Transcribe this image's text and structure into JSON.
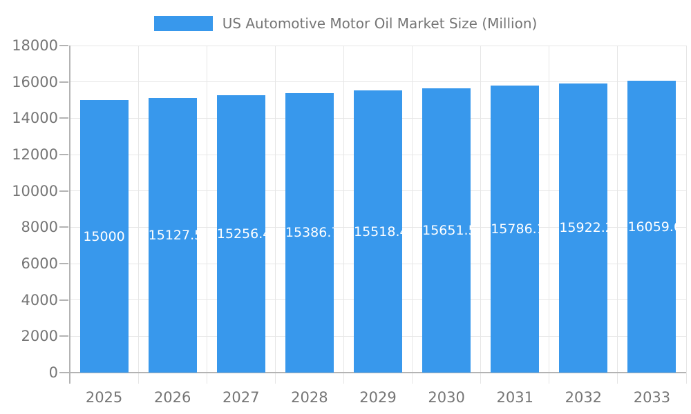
{
  "chart_data": {
    "type": "bar",
    "title": "US Automotive Motor Oil Market Size (Million)",
    "categories": [
      "2025",
      "2026",
      "2027",
      "2028",
      "2029",
      "2030",
      "2031",
      "2032",
      "2033"
    ],
    "values": [
      15000,
      15127.5,
      15256.4,
      15386.7,
      15518.4,
      15651.5,
      15786.1,
      15922.2,
      16059.6
    ],
    "value_labels": [
      "15000",
      "15127.5",
      "15256.4",
      "15386.7",
      "15518.4",
      "15651.5",
      "15786.1",
      "15922.2",
      "16059.6"
    ],
    "xlabel": "",
    "ylabel": "",
    "ylim": [
      0,
      18000
    ],
    "ytick_step": 2000,
    "ytick_labels": [
      "0",
      "2000",
      "4000",
      "6000",
      "8000",
      "10000",
      "12000",
      "14000",
      "16000",
      "18000"
    ],
    "grid": true,
    "legend_position": "top",
    "colors": {
      "bar": "#3898EC",
      "bar_value_text": "#ffffff",
      "axis_text": "#757575",
      "legend_text": "#757575",
      "grid_line": "#e6e6e6",
      "axis_line": "#b3b3b3",
      "background": "#ffffff"
    }
  }
}
